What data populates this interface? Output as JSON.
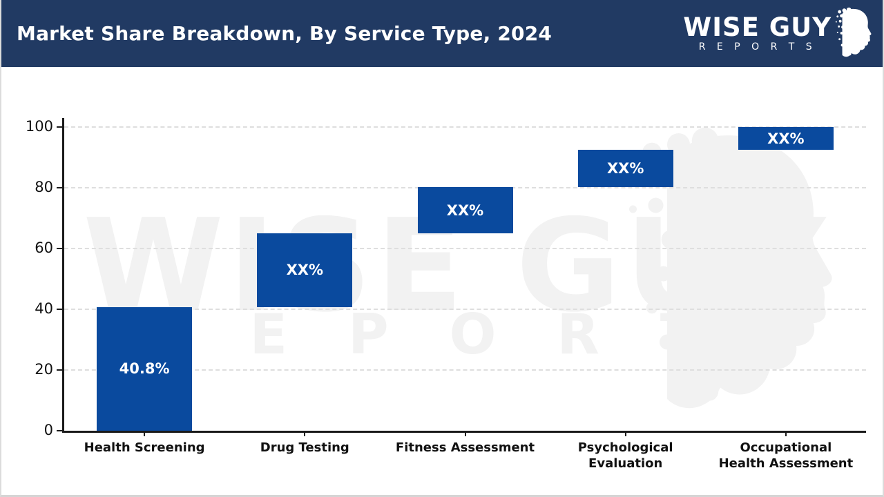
{
  "header": {
    "title": "Market Share Breakdown, By Service Type, 2024",
    "bg_color": "#213a63",
    "logo": {
      "name": "WISE GUY",
      "sub": "R E P O R T S"
    }
  },
  "watermark": {
    "line1": "WISE GUY",
    "line2": "R E P O R T S"
  },
  "chart_data": {
    "type": "bar",
    "subtype": "waterfall",
    "title": "Market Share Breakdown, By Service Type, 2024",
    "categories": [
      "Health Screening",
      "Drug Testing",
      "Fitness Assessment",
      "Psychological\nEvaluation",
      "Occupational\nHealth Assessment"
    ],
    "segments": [
      {
        "category": "Health Screening",
        "start": 0,
        "end": 40.8,
        "label": "40.8%"
      },
      {
        "category": "Drug Testing",
        "start": 40.8,
        "end": 65,
        "label": "XX%"
      },
      {
        "category": "Fitness Assessment",
        "start": 65,
        "end": 80.2,
        "label": "XX%"
      },
      {
        "category": "Psychological Evaluation",
        "start": 80.2,
        "end": 92.5,
        "label": "XX%"
      },
      {
        "category": "Occupational Health Assessment",
        "start": 92.5,
        "end": 100,
        "label": "XX%"
      }
    ],
    "yticks": [
      0,
      20,
      40,
      60,
      80,
      100
    ],
    "ylim": [
      0,
      103
    ],
    "grid": true,
    "legend": false,
    "bar_color": "#0a4a9e",
    "bar_label_color": "#ffffff",
    "gridline_color": "#dedede",
    "axis_color": "#1a1a1a",
    "xlabel": "",
    "ylabel": ""
  }
}
